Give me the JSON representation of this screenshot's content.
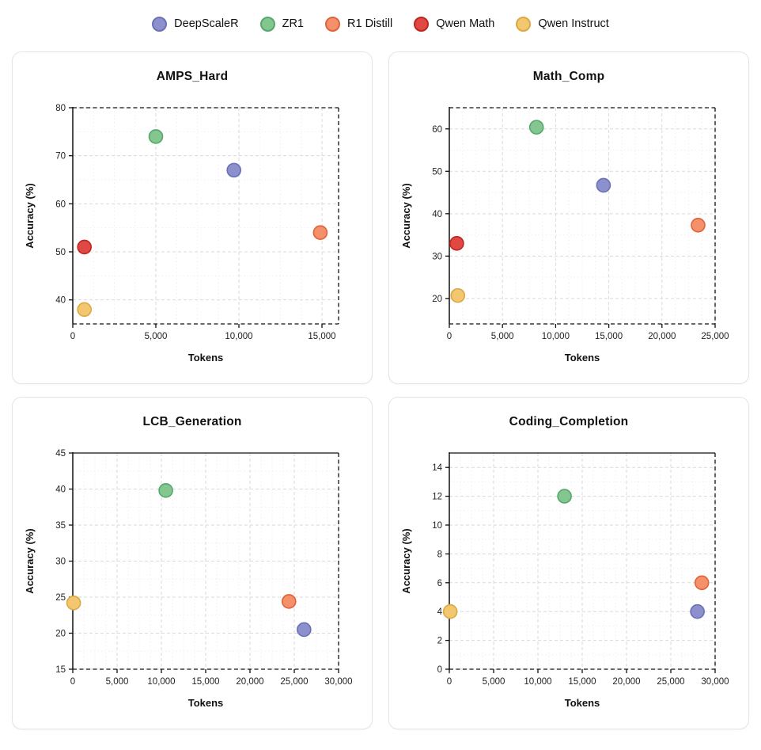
{
  "legend": {
    "items": [
      {
        "label": "DeepScaleR",
        "fill": "#8C91CE",
        "stroke": "#6A70B5"
      },
      {
        "label": "ZR1",
        "fill": "#83C68F",
        "stroke": "#55A86B"
      },
      {
        "label": "R1 Distill",
        "fill": "#F4906A",
        "stroke": "#E0623B"
      },
      {
        "label": "Qwen Math",
        "fill": "#E04843",
        "stroke": "#BE2520"
      },
      {
        "label": "Qwen Instruct",
        "fill": "#F3C76F",
        "stroke": "#DBA844"
      }
    ]
  },
  "chart_data": [
    {
      "type": "scatter",
      "title": "AMPS_Hard",
      "xlabel": "Tokens",
      "ylabel": "Accuracy (%)",
      "xlim": [
        0,
        16000
      ],
      "ylim": [
        35,
        80
      ],
      "xticks": [
        0,
        5000,
        10000,
        15000
      ],
      "yticks": [
        40,
        50,
        60,
        70,
        80
      ],
      "x_minor_step": 1250,
      "y_minor_step": 5,
      "grid": true,
      "legend_position": "shared-top",
      "top_spine": "dashed",
      "points": [
        {
          "series": "DeepScaleR",
          "x": 9700,
          "y": 67
        },
        {
          "series": "ZR1",
          "x": 5000,
          "y": 74
        },
        {
          "series": "R1 Distill",
          "x": 14900,
          "y": 54
        },
        {
          "series": "Qwen Math",
          "x": 700,
          "y": 51
        },
        {
          "series": "Qwen Instruct",
          "x": 700,
          "y": 38
        }
      ]
    },
    {
      "type": "scatter",
      "title": "Math_Comp",
      "xlabel": "Tokens",
      "ylabel": "Accuracy (%)",
      "xlim": [
        0,
        25000
      ],
      "ylim": [
        14,
        65
      ],
      "xticks": [
        0,
        5000,
        10000,
        15000,
        20000,
        25000
      ],
      "yticks": [
        20,
        30,
        40,
        50,
        60
      ],
      "x_minor_step": 1250,
      "y_minor_step": 5,
      "grid": true,
      "legend_position": "shared-top",
      "top_spine": "dashed",
      "points": [
        {
          "series": "DeepScaleR",
          "x": 14500,
          "y": 46.7
        },
        {
          "series": "ZR1",
          "x": 8200,
          "y": 60.4
        },
        {
          "series": "R1 Distill",
          "x": 23400,
          "y": 37.3
        },
        {
          "series": "Qwen Math",
          "x": 700,
          "y": 33
        },
        {
          "series": "Qwen Instruct",
          "x": 800,
          "y": 20.7
        }
      ]
    },
    {
      "type": "scatter",
      "title": "LCB_Generation",
      "xlabel": "Tokens",
      "ylabel": "Accuracy (%)",
      "xlim": [
        0,
        30000
      ],
      "ylim": [
        15,
        45
      ],
      "xticks": [
        0,
        5000,
        10000,
        15000,
        20000,
        25000,
        30000
      ],
      "yticks": [
        15,
        20,
        25,
        30,
        35,
        40,
        45
      ],
      "x_minor_step": 1250,
      "y_minor_step": 2.5,
      "grid": true,
      "legend_position": "shared-top",
      "top_spine": "solid",
      "points": [
        {
          "series": "DeepScaleR",
          "x": 26100,
          "y": 20.5
        },
        {
          "series": "ZR1",
          "x": 10500,
          "y": 39.8
        },
        {
          "series": "R1 Distill",
          "x": 24400,
          "y": 24.4
        },
        {
          "series": "Qwen Instruct",
          "x": 100,
          "y": 24.2
        }
      ]
    },
    {
      "type": "scatter",
      "title": "Coding_Completion",
      "xlabel": "Tokens",
      "ylabel": "Accuracy (%)",
      "xlim": [
        0,
        30000
      ],
      "ylim": [
        0,
        15
      ],
      "xticks": [
        0,
        5000,
        10000,
        15000,
        20000,
        25000,
        30000
      ],
      "yticks": [
        0,
        2,
        4,
        6,
        8,
        10,
        12,
        14
      ],
      "x_minor_step": 1250,
      "y_minor_step": 1,
      "grid": true,
      "legend_position": "shared-top",
      "top_spine": "solid",
      "points": [
        {
          "series": "DeepScaleR",
          "x": 28000,
          "y": 4
        },
        {
          "series": "ZR1",
          "x": 13000,
          "y": 12
        },
        {
          "series": "R1 Distill",
          "x": 28500,
          "y": 6
        },
        {
          "series": "Qwen Instruct",
          "x": 100,
          "y": 4
        }
      ]
    }
  ]
}
